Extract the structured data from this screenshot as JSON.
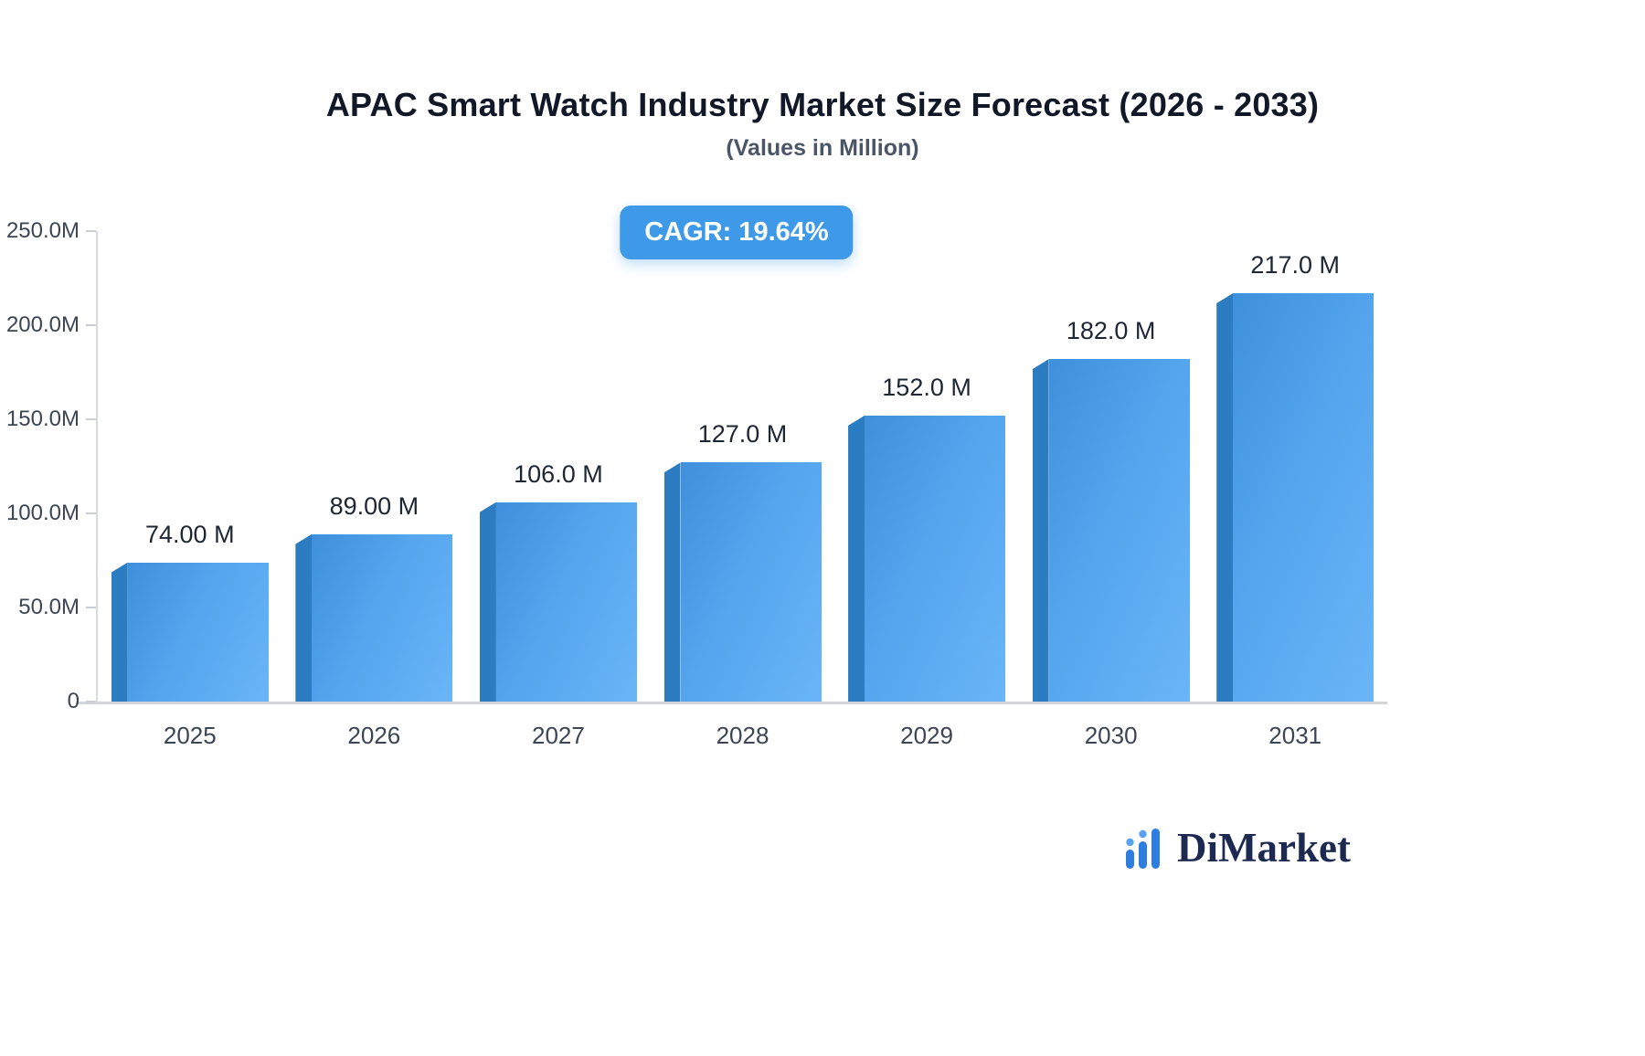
{
  "header": {
    "title": "APAC Smart Watch Industry Market Size Forecast (2026 - 2033)",
    "subtitle": "(Values in Million)",
    "cagr_badge": "CAGR: 19.64%"
  },
  "chart_data": {
    "type": "bar",
    "title": "APAC Smart Watch Industry Market Size Forecast (2026 - 2033)",
    "subtitle": "(Values in Million)",
    "categories": [
      "2025",
      "2026",
      "2027",
      "2028",
      "2029",
      "2030",
      "2031"
    ],
    "values": [
      74,
      89,
      106,
      127,
      152,
      182,
      217
    ],
    "value_labels": [
      "74.00 M",
      "89.00 M",
      "106.0 M",
      "127.0 M",
      "152.0 M",
      "182.0 M",
      "217.0 M"
    ],
    "xlabel": "",
    "ylabel": "",
    "ylim": [
      0,
      250
    ],
    "ytick_labels": [
      "0",
      "50.0M",
      "100.0M",
      "150.0M",
      "200.0M",
      "250.0M"
    ],
    "grid": false,
    "legend": "none",
    "annotation": "CAGR: 19.64%"
  },
  "footer": {
    "logo_text": "DiMarket"
  },
  "colors": {
    "badge_bg": "#3e9ae9",
    "badge_text": "#ffffff",
    "bar_face_light": "#69b5f7",
    "bar_face_dark": "#3f90dc",
    "bar_side": "#2c7cc2",
    "axis_line": "#d2d6db",
    "tick_text": "#3b4554",
    "title_text": "#111827",
    "logo_text": "#1c2950",
    "logo_icon": "#2e7ddf"
  }
}
